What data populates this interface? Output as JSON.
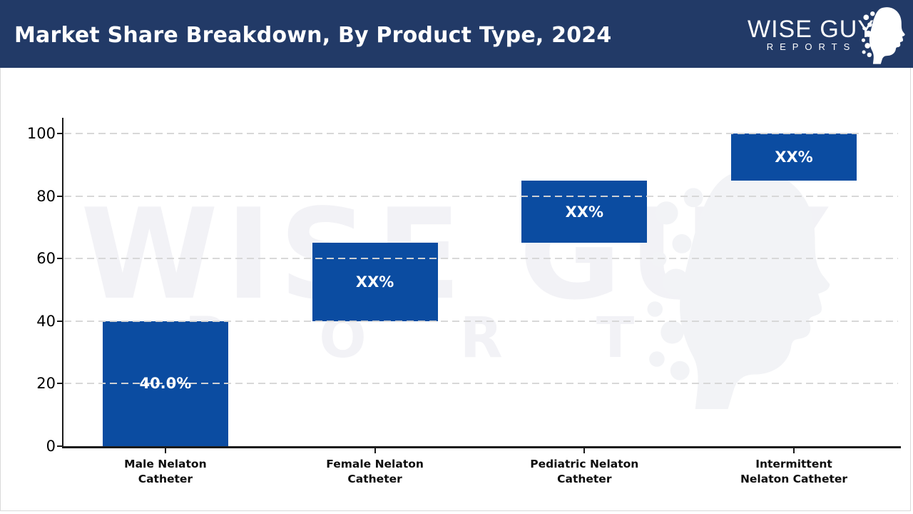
{
  "header": {
    "title": "Market Share Breakdown, By Product Type, 2024",
    "logo": {
      "brand": "WISE GUY",
      "sub": "REPORTS"
    }
  },
  "watermark": {
    "line1": "WISE GUY",
    "line2": "P O R T S"
  },
  "chart_data": {
    "type": "bar",
    "variant": "floating-waterfall",
    "title": "Market Share Breakdown, By Product Type, 2024",
    "categories": [
      "Male Nelaton Catheter",
      "Female Nelaton Catheter",
      "Pediatric Nelaton Catheter",
      "Intermittent Nelaton Catheter"
    ],
    "category_lines": [
      [
        "Male Nelaton",
        "Catheter"
      ],
      [
        "Female Nelaton",
        "Catheter"
      ],
      [
        "Pediatric Nelaton",
        "Catheter"
      ],
      [
        "Intermittent",
        "Nelaton Catheter"
      ]
    ],
    "bars": [
      {
        "category": "Male Nelaton Catheter",
        "start": 0,
        "end": 40,
        "label": "40.0%"
      },
      {
        "category": "Female Nelaton Catheter",
        "start": 40,
        "end": 65,
        "label": "XX%"
      },
      {
        "category": "Pediatric Nelaton Catheter",
        "start": 65,
        "end": 85,
        "label": "XX%"
      },
      {
        "category": "Intermittent Nelaton Catheter",
        "start": 85,
        "end": 100,
        "label": "XX%"
      }
    ],
    "yticks": [
      0,
      20,
      40,
      60,
      80,
      100
    ],
    "ylim": [
      0,
      105
    ],
    "xlabel": "",
    "ylabel": "",
    "grid": "dashed-horizontal",
    "legend": "none"
  },
  "colors": {
    "header_bg": "#223A67",
    "panel_bg": "#FFFFFF",
    "panel_border": "#D9D9D9",
    "bar": "#0B4CA1",
    "grid": "#D6D6D6",
    "axis": "#1A1A1A",
    "bar_label": "#FFFFFF",
    "watermark": "#F2F2F6"
  }
}
